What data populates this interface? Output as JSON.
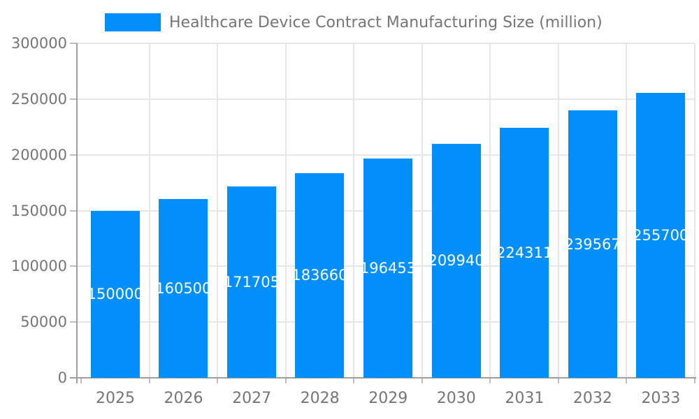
{
  "legend": {
    "label": "Healthcare Device Contract Manufacturing Size (million)"
  },
  "colors": {
    "bar": "#008ffb",
    "bar_value_text": "#ffffff",
    "axis_text": "#757575",
    "grid_line": "#e6e6e6",
    "axis_line": "#9e9e9e",
    "background": "#ffffff"
  },
  "chart_data": {
    "type": "bar",
    "title": "Healthcare Device Contract Manufacturing Size (million)",
    "xlabel": "",
    "ylabel": "",
    "categories": [
      "2025",
      "2026",
      "2027",
      "2028",
      "2029",
      "2030",
      "2031",
      "2032",
      "2033"
    ],
    "series": [
      {
        "name": "Healthcare Device Contract Manufacturing Size (million)",
        "values": [
          150000,
          160500,
          171705,
          183660,
          196453,
          209940,
          224311,
          239567,
          255700
        ]
      }
    ],
    "value_labels_shown": true,
    "value_label_position": "center-of-bar",
    "ylim": [
      0,
      300000
    ],
    "yticks": [
      0,
      50000,
      100000,
      150000,
      200000,
      250000,
      300000
    ],
    "grid": true,
    "legend_position": "top-left"
  }
}
